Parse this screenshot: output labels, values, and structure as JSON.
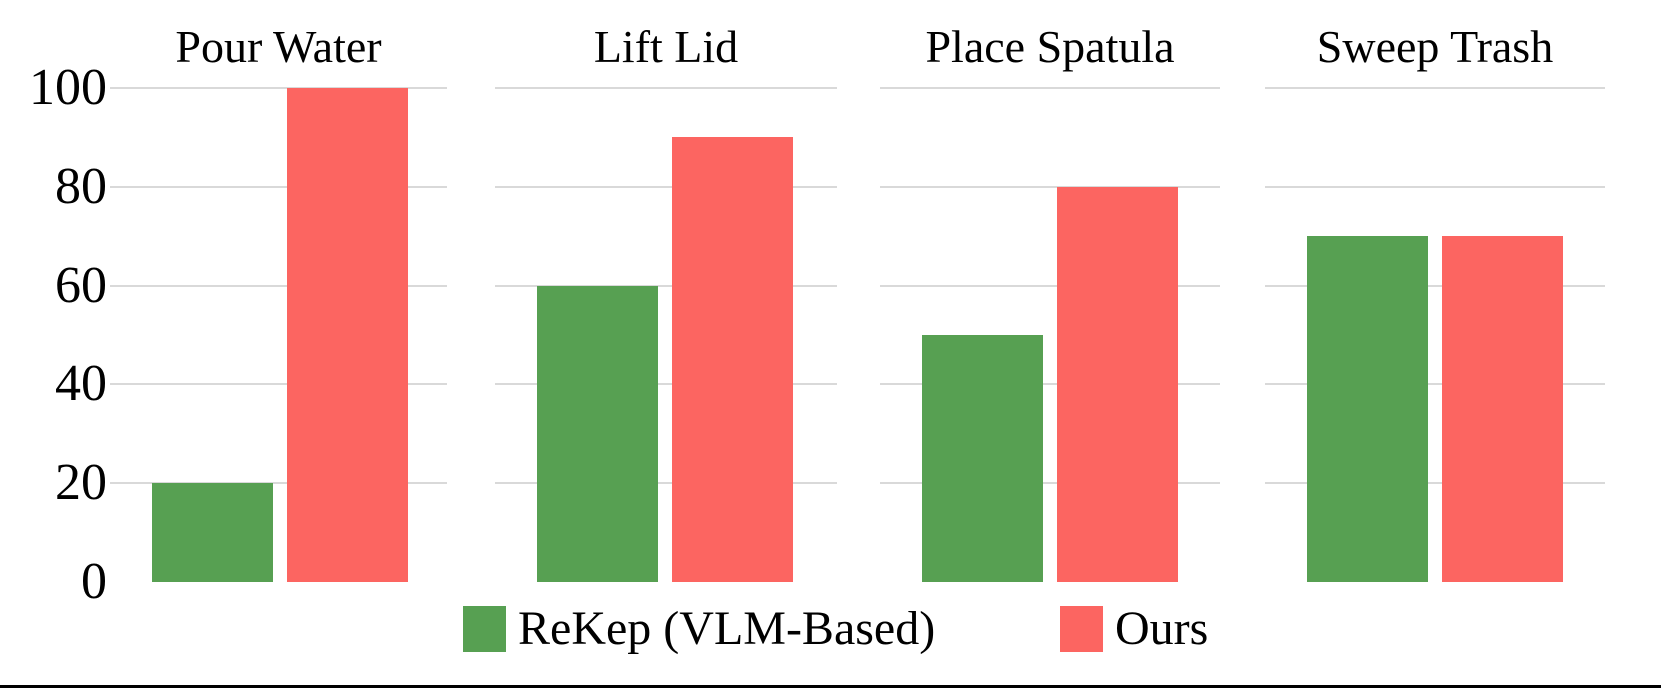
{
  "chart_data": {
    "type": "bar",
    "layout": "4 side-by-side subplots sharing one y-axis, grouped bars (2 series per subplot), legend below",
    "categories": [
      "Pour Water",
      "Lift Lid",
      "Place Spatula",
      "Sweep Trash"
    ],
    "series": [
      {
        "name": "ReKep (VLM-Based)",
        "color": "#57A052",
        "values": [
          20,
          60,
          50,
          70
        ]
      },
      {
        "name": "Ours",
        "color": "#FC6561",
        "values": [
          100,
          90,
          80,
          70
        ]
      }
    ],
    "yticks": [
      0,
      20,
      40,
      60,
      80,
      100
    ],
    "ylim": [
      0,
      100
    ],
    "xlabel": "",
    "ylabel": "",
    "grid": {
      "horizontal": true,
      "color": "#D9D9D9",
      "zero_line": false
    },
    "legend_position": "bottom-center"
  },
  "colors": {
    "background": "#ffffff",
    "grid": "#D9D9D9",
    "text": "#000000",
    "bottom_rule": "#000000"
  }
}
